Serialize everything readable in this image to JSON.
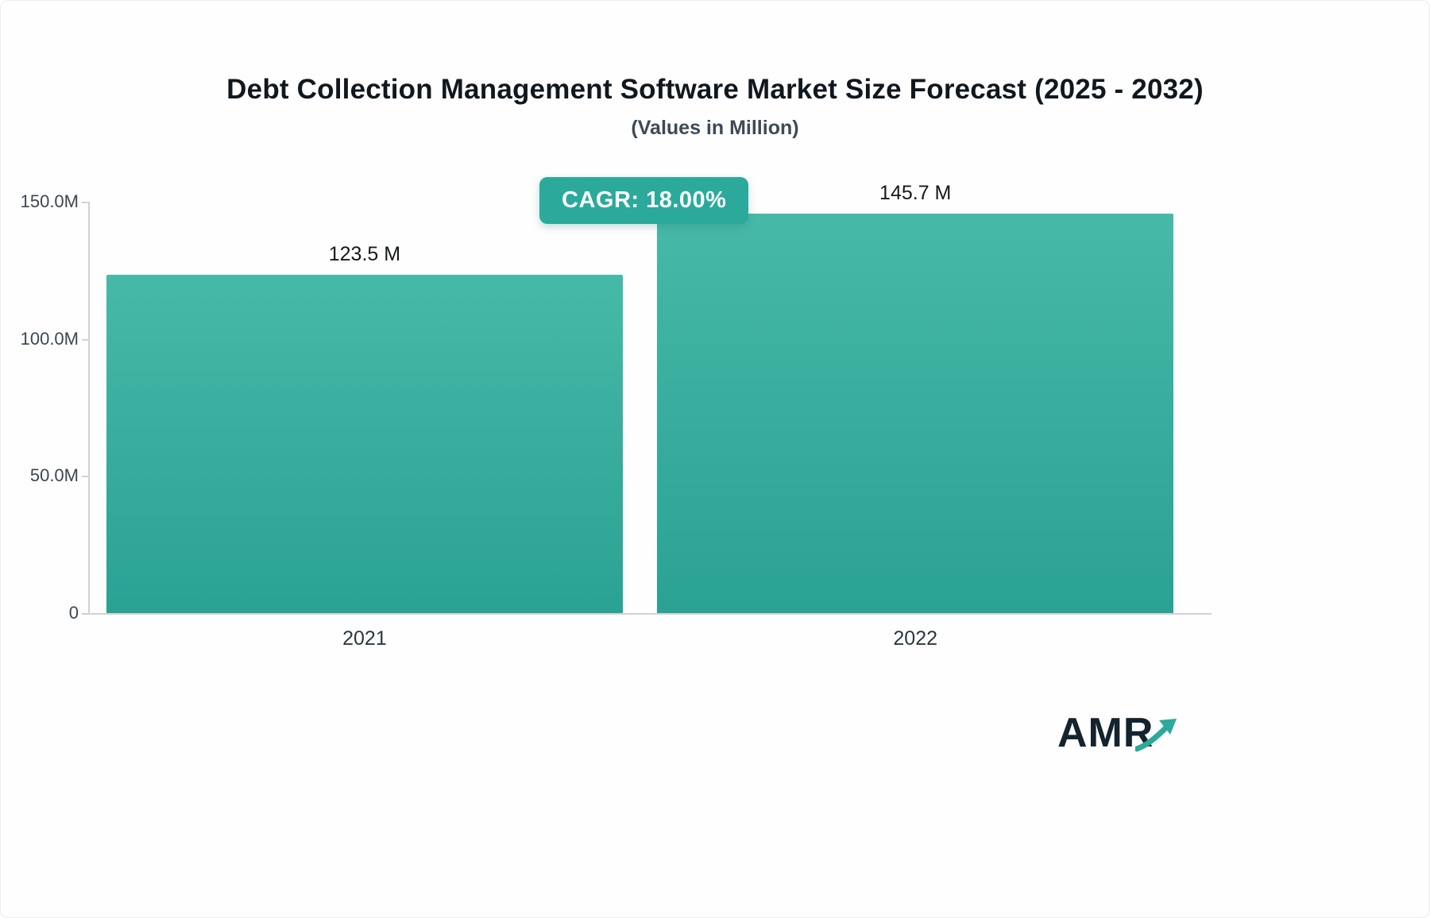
{
  "header": {
    "title": "Debt Collection Management Software Market Size Forecast (2025 - 2032)",
    "subtitle": "(Values in Million)"
  },
  "badge": {
    "label": "CAGR: 18.00%"
  },
  "logo": {
    "text": "AMR",
    "arrow_icon": "trend-up-arrow-icon"
  },
  "colors": {
    "bar_gradient_top": "#47b9a8",
    "bar_gradient_bottom": "#2aa293",
    "badge_background": "#2baa9c",
    "title_text": "#10181f",
    "axis_line": "#cfd3d7",
    "tick_text": "#3d4652"
  },
  "chart_data": {
    "type": "bar",
    "title": "Debt Collection Management Software Market Size Forecast (2025 - 2032)",
    "subtitle": "(Values in Million)",
    "categories": [
      "2021",
      "2022"
    ],
    "values": [
      123.5,
      145.7
    ],
    "value_labels": [
      "123.5 M",
      "145.7 M"
    ],
    "xlabel": "",
    "ylabel": "",
    "ylim": [
      0,
      150
    ],
    "yticks": [
      {
        "value": 0,
        "label": "0"
      },
      {
        "value": 50,
        "label": "50.0M"
      },
      {
        "value": 100,
        "label": "100.0M"
      },
      {
        "value": 150,
        "label": "150.0M"
      }
    ],
    "grid": false,
    "legend": false,
    "annotation": "CAGR: 18.00%"
  }
}
